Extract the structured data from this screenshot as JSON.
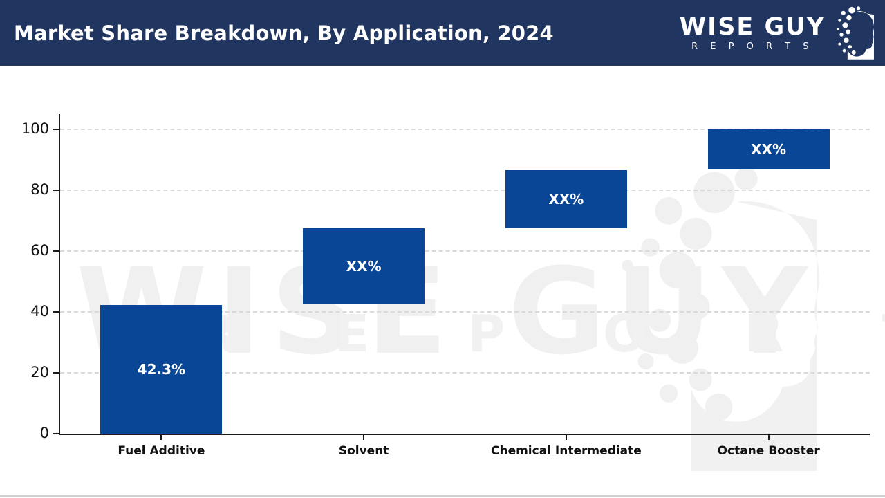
{
  "header": {
    "title": "Market Share Breakdown, By Application, 2024",
    "logo_line1": "WISE GUY",
    "logo_line2": "R E P O R T S"
  },
  "watermark": {
    "line1": "WISE GUY",
    "line2": "R E P O R T S"
  },
  "colors": {
    "header_bg": "#203560",
    "bar": "#0a4696",
    "gridline": "#d9d9d9",
    "axis": "#1a1a1a",
    "bar_label": "#ffffff",
    "watermark": "#f0f0f1"
  },
  "chart_data": {
    "type": "bar",
    "variant": "waterfall",
    "title": "Market Share Breakdown, By Application, 2024",
    "categories": [
      "Fuel Additive",
      "Solvent",
      "Chemical Intermediate",
      "Octane Booster"
    ],
    "segments": [
      {
        "category": "Fuel Additive",
        "start": 0,
        "end": 42.3,
        "value_label": "42.3%"
      },
      {
        "category": "Solvent",
        "start": 42.5,
        "end": 67.5,
        "value_label": "XX%"
      },
      {
        "category": "Chemical Intermediate",
        "start": 67.5,
        "end": 86.5,
        "value_label": "XX%"
      },
      {
        "category": "Octane Booster",
        "start": 87,
        "end": 100,
        "value_label": "XX%"
      }
    ],
    "yticks": [
      0,
      20,
      40,
      60,
      80,
      100
    ],
    "ylim": [
      0,
      105
    ],
    "grid": "horizontal-dashed",
    "legend": "none",
    "xlabel": "",
    "ylabel": ""
  }
}
